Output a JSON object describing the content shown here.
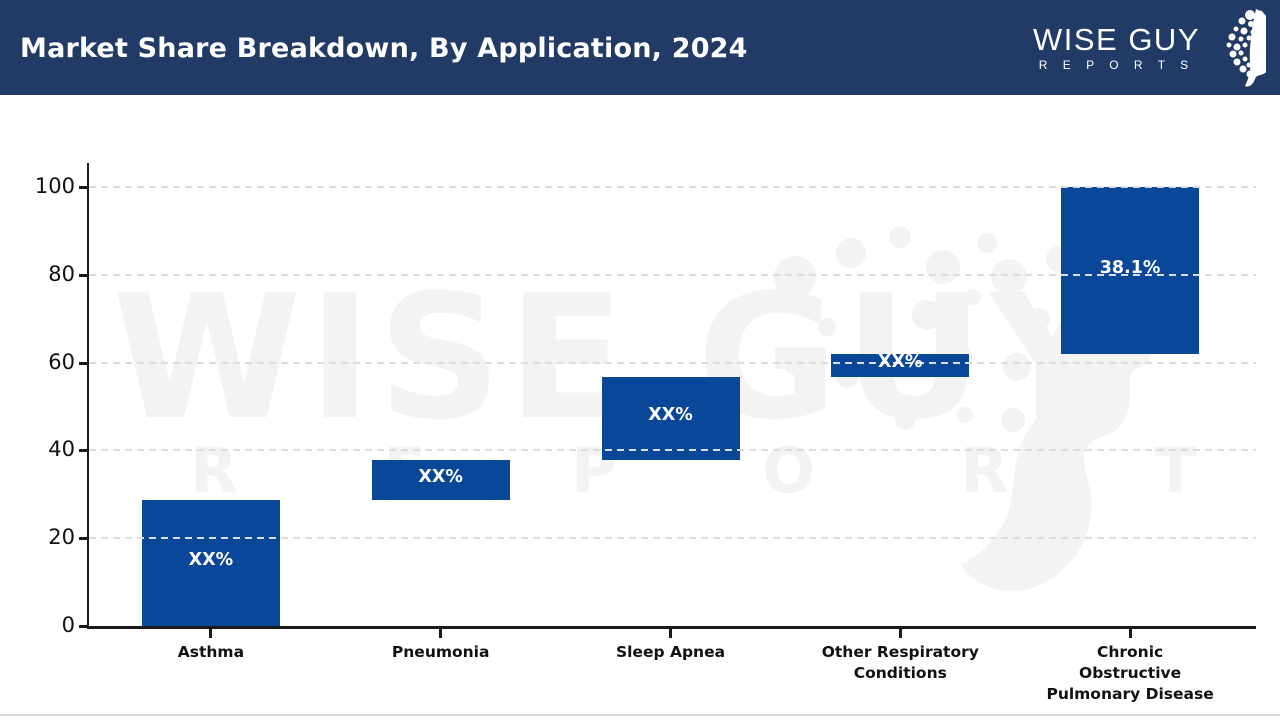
{
  "header": {
    "title": "Market Share Breakdown, By Application, 2024",
    "bg_color": "#213a66",
    "logo": {
      "name": "WISE GUY",
      "sub": "R E P O R T S"
    }
  },
  "watermark": {
    "name": "WISE GUY",
    "sub": "R E P O R T S"
  },
  "chart_data": {
    "type": "bar",
    "subtype": "waterfall",
    "title": "Market Share Breakdown, By Application, 2024",
    "categories": [
      "Asthma",
      "Pneumonia",
      "Sleep Apnea",
      "Other Respiratory Conditions",
      "Chronic Obstructive Pulmonary Disease"
    ],
    "bars": [
      {
        "name": "Asthma",
        "lines": [
          "Asthma"
        ],
        "start": 0,
        "end": 28.6,
        "value_label": "XX%"
      },
      {
        "name": "Pneumonia",
        "lines": [
          "Pneumonia"
        ],
        "start": 28.6,
        "end": 37.9,
        "value_label": "XX%"
      },
      {
        "name": "Sleep Apnea",
        "lines": [
          "Sleep Apnea"
        ],
        "start": 37.9,
        "end": 56.8,
        "value_label": "XX%"
      },
      {
        "name": "Other Respiratory Conditions",
        "lines": [
          "Other Respiratory",
          "Conditions"
        ],
        "start": 56.8,
        "end": 61.9,
        "value_label": "XX%"
      },
      {
        "name": "Chronic Obstructive Pulmonary Disease",
        "lines": [
          "Chronic",
          "Obstructive",
          "Pulmonary Disease"
        ],
        "start": 61.9,
        "end": 100,
        "value_label": "38.1%"
      }
    ],
    "ylim": [
      0,
      100
    ],
    "yticks": [
      0,
      20,
      40,
      60,
      80,
      100
    ],
    "grid": "horizontal-dashed",
    "legend": "none",
    "colors": {
      "bar": "#0b4799",
      "bar_label": "#ffffff",
      "grid": "#dcdcdc",
      "axis": "#1a1a1a",
      "header_bg": "#213a66",
      "watermark": "#f3f3f3"
    }
  }
}
